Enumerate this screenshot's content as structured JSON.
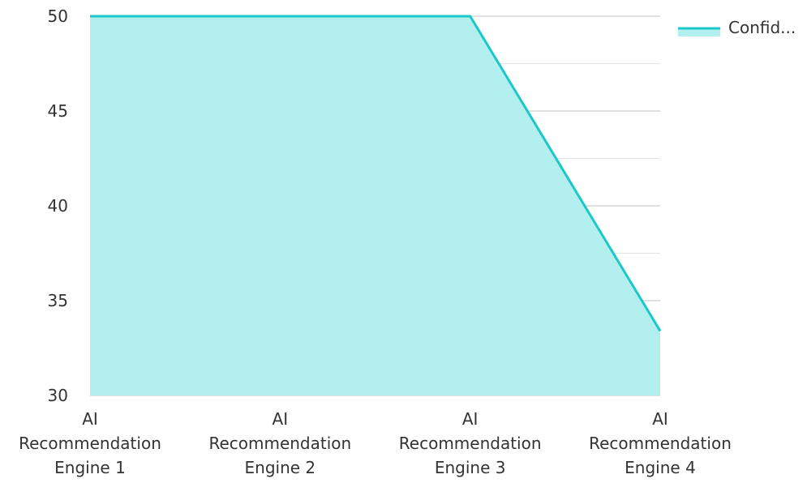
{
  "chart_data": {
    "type": "area",
    "title": "",
    "xlabel": "",
    "ylabel": "",
    "categories": [
      [
        "AI",
        "Recommendation",
        "Engine 1"
      ],
      [
        "AI",
        "Recommendation",
        "Engine 2"
      ],
      [
        "AI",
        "Recommendation",
        "Engine 3"
      ],
      [
        "AI",
        "Recommendation",
        "Engine 4"
      ]
    ],
    "series": [
      {
        "name": "Confid...",
        "values": [
          50,
          50,
          50,
          33.4
        ],
        "color": "#19c9c9",
        "fill_color": "#b2efee"
      }
    ],
    "ylim": [
      30,
      50
    ],
    "yticks": [
      30,
      35,
      40,
      45,
      50
    ],
    "grid": true,
    "legend": "top-right",
    "gridline_color": "#c8c8c8"
  }
}
